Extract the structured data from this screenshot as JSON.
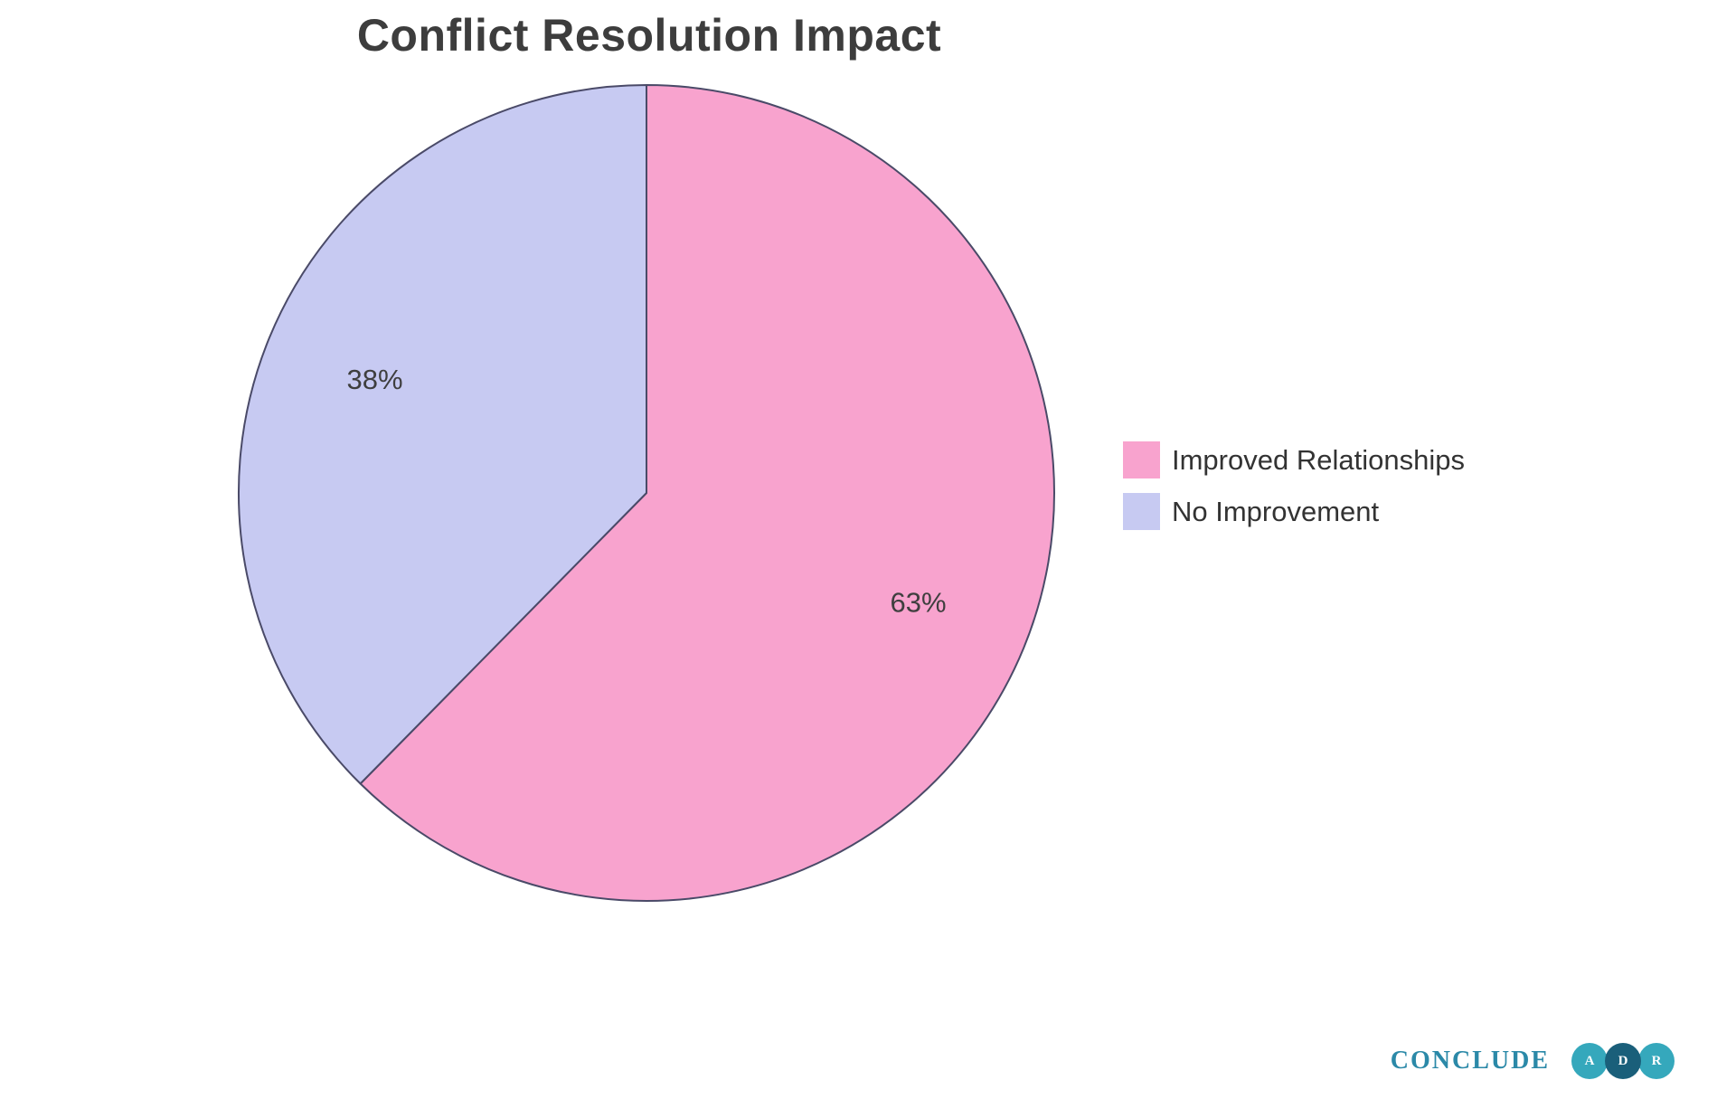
{
  "chart_data": {
    "type": "pie",
    "title": "Conflict Resolution Impact",
    "start_angle_deg": 0,
    "direction": "clockwise",
    "legend_position": "right",
    "stroke_color": "#4A4A68",
    "label_color": "#3f3f3f",
    "slices": [
      {
        "label": "Improved Relationships",
        "value": 63,
        "display": "63%",
        "color": "#F8A3CE"
      },
      {
        "label": "No Improvement",
        "value": 38,
        "display": "38%",
        "color": "#C7CAF2"
      }
    ]
  },
  "branding": {
    "wordmark": "CONCLUDE",
    "wordmark_color": "#2B89A8",
    "badges": [
      {
        "letter": "A",
        "color": "#35A8BC"
      },
      {
        "letter": "D",
        "color": "#1A5F7A"
      },
      {
        "letter": "R",
        "color": "#35A8BC"
      }
    ]
  }
}
